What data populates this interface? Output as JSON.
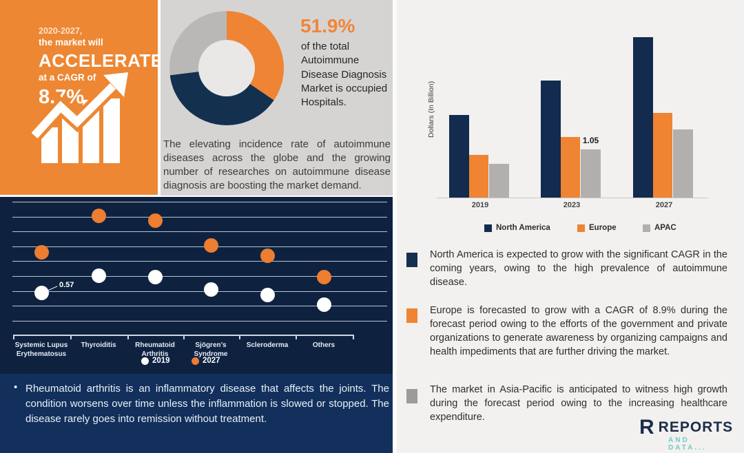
{
  "colors": {
    "orange_panel": "#ED8733",
    "orange_accent": "#EF8432",
    "navy_dark_panel": "#0E2240",
    "navy_strip": "#12305B",
    "navy_series": "#122B4E",
    "gray_panel": "#D5D4D2",
    "gray_series": "#B1B0AE",
    "right_bg": "#F2F1EF",
    "stat_orange": "#F08638",
    "logo_navy": "#1B2E4A",
    "logo_teal": "#6FCBC8"
  },
  "accelerate_box": {
    "line1": "2020-2027,",
    "line2": "the market will",
    "line3": "ACCELERATE",
    "line4": "at a CAGR of",
    "line5": "8.7%"
  },
  "hospital_stat": {
    "value": "51.9%",
    "description": "of the total Autoimmune Disease Diagnosis Market is occupied Hospitals."
  },
  "market_driver_paragraph": "The elevating incidence rate of autoimmune diseases across the globe and the growing number of researches on autoimmune disease diagnosis are boosting the market demand.",
  "ra_note": {
    "bullet_glyph": "•",
    "text": "Rheumatoid arthritis is an inflammatory disease that affects the joints. The condition worsens over time unless the inflammation is slowed or stopped. The disease rarely goes into remission without treatment."
  },
  "regional_bullets": [
    {
      "color": "#14304F",
      "text": "North America is expected to grow with the significant CAGR in the coming years, owing to the high prevalence of autoimmune disease."
    },
    {
      "color": "#EF8432",
      "text": "Europe is forecasted to grow with a CAGR of 8.9% during the forecast period owing to the efforts of the government and private organizations to generate awareness by organizing campaigns and health impediments that are further driving the market."
    },
    {
      "color": "#9C9B99",
      "text": "The market in Asia-Pacific is anticipated to witness high growth during the forecast period owing to the increasing healthcare expenditure."
    }
  ],
  "logo": {
    "mark": "R",
    "title": "REPORTS",
    "subtitle": "AND DATA..."
  },
  "chart_data": [
    {
      "id": "hospital-share-donut",
      "type": "pie",
      "donut": true,
      "slices": [
        {
          "label": "",
          "value": 34.5,
          "color": "#EE8434"
        },
        {
          "label": "",
          "value": 38.5,
          "color": "#14304F"
        },
        {
          "label": "",
          "value": 27.0,
          "color": "#B9B8B6"
        }
      ],
      "annotation": "51.9% of the total Autoimmune Disease Diagnosis Market is occupied Hospitals.",
      "legend_position": "none"
    },
    {
      "id": "regional-market-bars",
      "type": "bar",
      "categories": [
        "2019",
        "2023",
        "2027"
      ],
      "series": [
        {
          "name": "North America",
          "color": "#122B4E",
          "values": [
            1.8,
            2.55,
            3.5
          ]
        },
        {
          "name": "Europe",
          "color": "#EF8432",
          "values": [
            0.93,
            1.32,
            1.85
          ]
        },
        {
          "name": "APAC",
          "color": "#B1B0AE",
          "values": [
            0.74,
            1.05,
            1.49
          ]
        }
      ],
      "ylabel": "Dollars (In Billion)",
      "ylim": [
        0,
        4.3
      ],
      "grid": false,
      "legend_position": "bottom",
      "data_labels": [
        {
          "series": "APAC",
          "category": "2023",
          "text": "1.05"
        }
      ]
    },
    {
      "id": "disease-prevalence-dotplot",
      "type": "scatter",
      "categories": [
        "Systemic Lupus Erythematosus",
        "Thyroiditis",
        "Rheumatoid Arthritis",
        "Sjögren’s Syndrome",
        "Scleroderma",
        "Others"
      ],
      "series": [
        {
          "name": "2019",
          "color": "#FFFFFF",
          "values": [
            0.57,
            0.92,
            0.89,
            0.64,
            0.53,
            0.33
          ]
        },
        {
          "name": "2027",
          "color": "#ED7D31",
          "values": [
            1.39,
            2.13,
            2.03,
            1.53,
            1.32,
            0.88
          ]
        }
      ],
      "ylim": [
        0,
        2.4
      ],
      "grid": true,
      "legend_position": "bottom",
      "data_labels": [
        {
          "series": "2019",
          "category": "Systemic Lupus Erythematosus",
          "text": "0.57"
        }
      ]
    }
  ]
}
